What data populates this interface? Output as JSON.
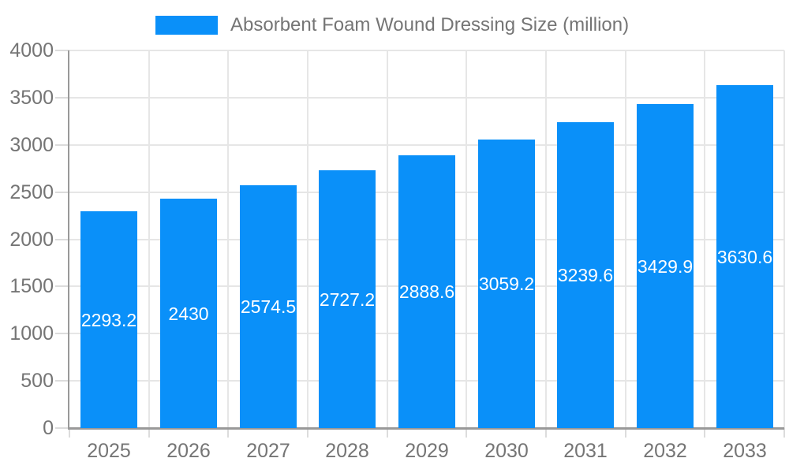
{
  "legend": {
    "label": "Absorbent Foam Wound Dressing Size (million)"
  },
  "colors": {
    "bar": "#0a90f9",
    "bar_label_text": "#ffffff",
    "gridline": "#e6e6e6",
    "tick": "#dcdcdc",
    "axis": "#999999",
    "axis_label_text": "#757575",
    "legend_text": "#757575",
    "background": "#ffffff"
  },
  "chart_data": {
    "type": "bar",
    "title": "",
    "legend": "Absorbent Foam Wound Dressing Size (million)",
    "legend_position": "top",
    "categories": [
      "2025",
      "2026",
      "2027",
      "2028",
      "2029",
      "2030",
      "2031",
      "2032",
      "2033"
    ],
    "values": [
      2293.2,
      2430,
      2574.5,
      2727.2,
      2888.6,
      3059.2,
      3239.6,
      3429.9,
      3630.6
    ],
    "value_labels": [
      "2293.2",
      "2430",
      "2574.5",
      "2727.2",
      "2888.6",
      "3059.2",
      "3239.6",
      "3429.9",
      "3630.6"
    ],
    "xlabel": "",
    "ylabel": "",
    "ylim": [
      0,
      4000
    ],
    "yticks": [
      0,
      500,
      1000,
      1500,
      2000,
      2500,
      3000,
      3500,
      4000
    ],
    "grid": true,
    "data_labels": "inside-center"
  }
}
